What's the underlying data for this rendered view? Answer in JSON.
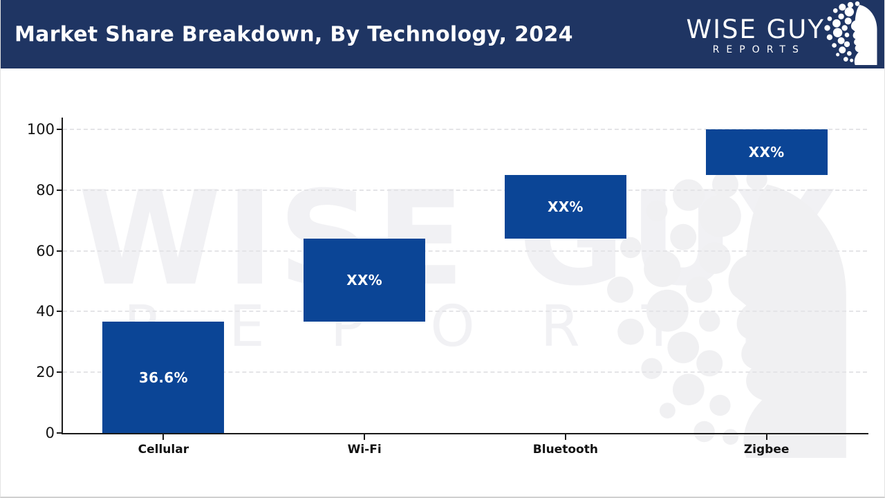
{
  "header": {
    "title": "Market Share Breakdown, By Technology, 2024",
    "logo": {
      "line1": "WISE GUY",
      "line2": "REPORTS"
    }
  },
  "watermark": {
    "line1": "WISE GUY",
    "line2": "REPORTS"
  },
  "chart_data": {
    "type": "bar",
    "subtype": "waterfall",
    "title": "Market Share Breakdown, By Technology, 2024",
    "categories": [
      "Cellular",
      "Wi-Fi",
      "Bluetooth",
      "Zigbee"
    ],
    "segments": [
      {
        "category": "Cellular",
        "start": 0,
        "end": 36.6,
        "label": "36.6%"
      },
      {
        "category": "Wi-Fi",
        "start": 36.6,
        "end": 64,
        "label": "XX%"
      },
      {
        "category": "Bluetooth",
        "start": 64,
        "end": 85,
        "label": "XX%"
      },
      {
        "category": "Zigbee",
        "start": 85,
        "end": 100,
        "label": "XX%"
      }
    ],
    "yticks": [
      0,
      20,
      40,
      60,
      80,
      100
    ],
    "ylim": [
      0,
      105
    ],
    "xlabel": "",
    "ylabel": "",
    "legend": "none",
    "grid": "horizontal-dashed",
    "bar_color": "#0b4596",
    "bar_label_color": "#ffffff",
    "header_bg_color": "#1f3563",
    "watermark_color": "#f1f1f4"
  }
}
